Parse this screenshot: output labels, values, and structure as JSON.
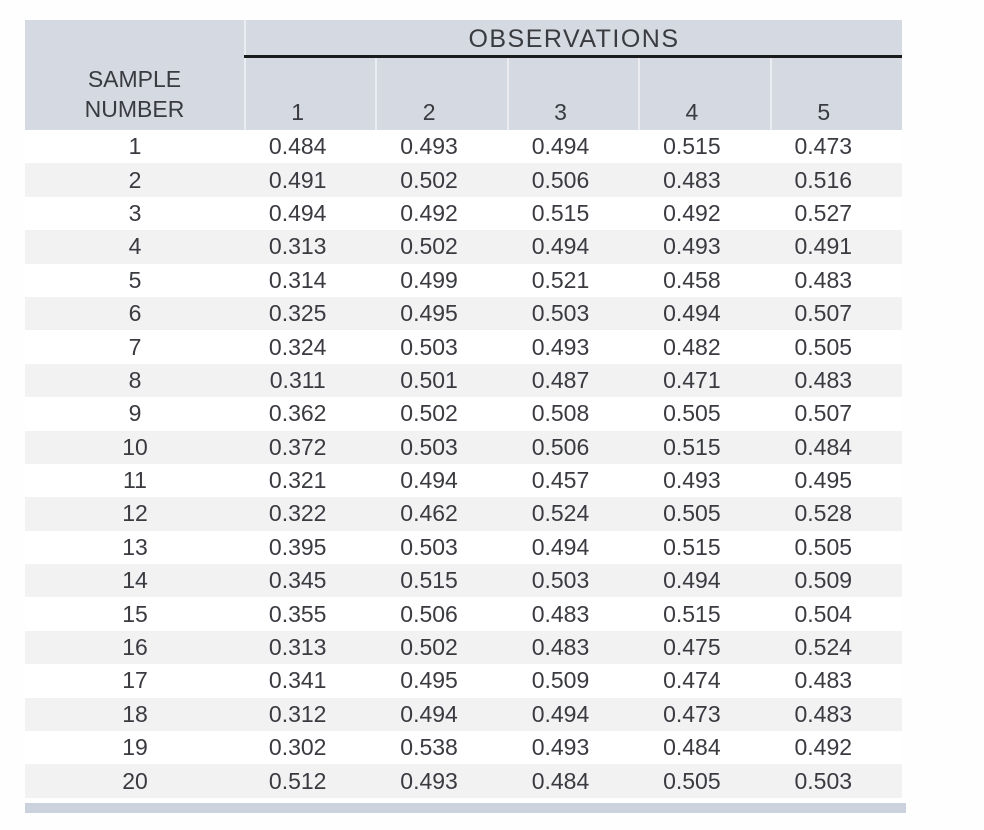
{
  "chart_data": {
    "type": "table",
    "title": "OBSERVATIONS",
    "columns": [
      "SAMPLE NUMBER",
      "1",
      "2",
      "3",
      "4",
      "5"
    ],
    "rows": [
      [
        1,
        0.484,
        0.493,
        0.494,
        0.515,
        0.473
      ],
      [
        2,
        0.491,
        0.502,
        0.506,
        0.483,
        0.516
      ],
      [
        3,
        0.494,
        0.492,
        0.515,
        0.492,
        0.527
      ],
      [
        4,
        0.313,
        0.502,
        0.494,
        0.493,
        0.491
      ],
      [
        5,
        0.314,
        0.499,
        0.521,
        0.458,
        0.483
      ],
      [
        6,
        0.325,
        0.495,
        0.503,
        0.494,
        0.507
      ],
      [
        7,
        0.324,
        0.503,
        0.493,
        0.482,
        0.505
      ],
      [
        8,
        0.311,
        0.501,
        0.487,
        0.471,
        0.483
      ],
      [
        9,
        0.362,
        0.502,
        0.508,
        0.505,
        0.507
      ],
      [
        10,
        0.372,
        0.503,
        0.506,
        0.515,
        0.484
      ],
      [
        11,
        0.321,
        0.494,
        0.457,
        0.493,
        0.495
      ],
      [
        12,
        0.322,
        0.462,
        0.524,
        0.505,
        0.528
      ],
      [
        13,
        0.395,
        0.503,
        0.494,
        0.515,
        0.505
      ],
      [
        14,
        0.345,
        0.515,
        0.503,
        0.494,
        0.509
      ],
      [
        15,
        0.355,
        0.506,
        0.483,
        0.515,
        0.504
      ],
      [
        16,
        0.313,
        0.502,
        0.483,
        0.475,
        0.524
      ],
      [
        17,
        0.341,
        0.495,
        0.509,
        0.474,
        0.483
      ],
      [
        18,
        0.312,
        0.494,
        0.494,
        0.473,
        0.483
      ],
      [
        19,
        0.302,
        0.538,
        0.493,
        0.484,
        0.492
      ],
      [
        20,
        0.512,
        0.493,
        0.484,
        0.505,
        0.503
      ]
    ],
    "value_decimals": 3,
    "layout": {
      "striped_rows": "even",
      "rule_under_group_header": true
    }
  },
  "header": {
    "observations_label": "OBSERVATIONS",
    "sample_label_line1": "SAMPLE",
    "sample_label_line2": "NUMBER",
    "obs_col_labels": [
      "1",
      "2",
      "3",
      "4",
      "5"
    ]
  },
  "colors": {
    "header_bg": "#d5d9e2",
    "stripe_bg": "#f2f2f3",
    "footer_bar": "#cbd2dd",
    "text": "#3a3b40",
    "rule": "#1a1b1d"
  }
}
